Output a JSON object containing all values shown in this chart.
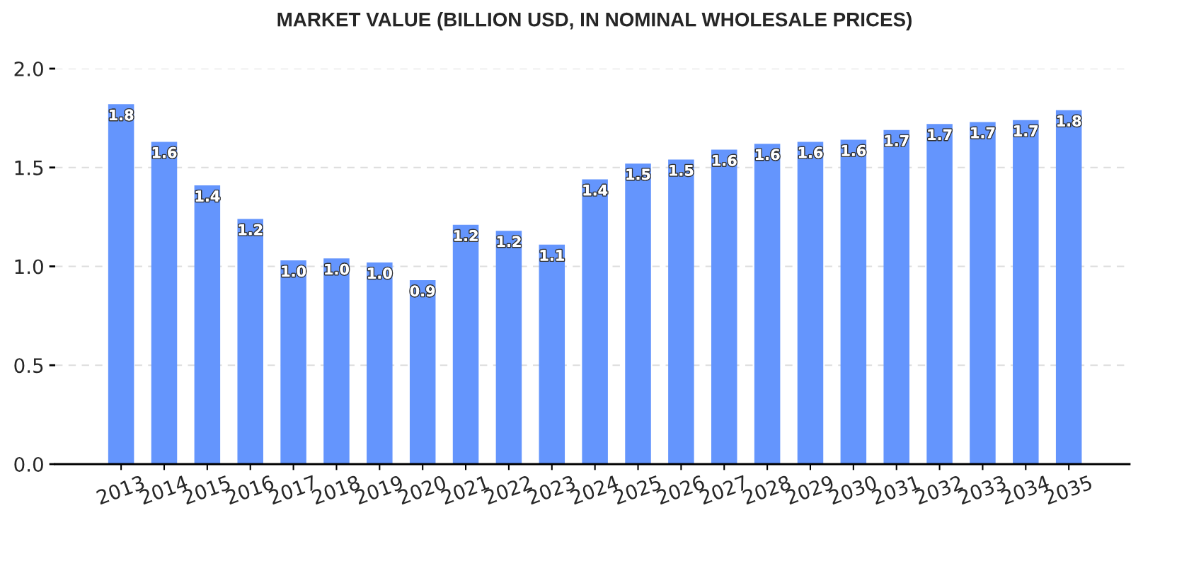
{
  "chart_data": {
    "type": "bar",
    "title": "MARKET VALUE (BILLION USD, IN NOMINAL WHOLESALE PRICES)",
    "categories": [
      "2013",
      "2014",
      "2015",
      "2016",
      "2017",
      "2018",
      "2019",
      "2020",
      "2021",
      "2022",
      "2023",
      "2024",
      "2025",
      "2026",
      "2027",
      "2028",
      "2029",
      "2030",
      "2031",
      "2032",
      "2033",
      "2034",
      "2035"
    ],
    "values": [
      1.82,
      1.63,
      1.41,
      1.24,
      1.03,
      1.04,
      1.02,
      0.93,
      1.21,
      1.18,
      1.11,
      1.44,
      1.52,
      1.54,
      1.59,
      1.62,
      1.63,
      1.64,
      1.69,
      1.72,
      1.73,
      1.74,
      1.79
    ],
    "value_labels": [
      "1.8",
      "1.6",
      "1.4",
      "1.2",
      "1.0",
      "1.0",
      "1.0",
      "0.9",
      "1.2",
      "1.2",
      "1.1",
      "1.4",
      "1.5",
      "1.5",
      "1.6",
      "1.6",
      "1.6",
      "1.6",
      "1.7",
      "1.7",
      "1.7",
      "1.7",
      "1.8"
    ],
    "color": "#6495fd",
    "ylim": [
      0,
      2.0
    ],
    "yticks": [
      {
        "value": 0,
        "label": "0.0"
      },
      0.5,
      {
        "value": 1,
        "label": "1.0"
      },
      1.5,
      {
        "value": 2,
        "label": "2.0"
      }
    ],
    "grid": "y",
    "line_style": "dashed"
  }
}
